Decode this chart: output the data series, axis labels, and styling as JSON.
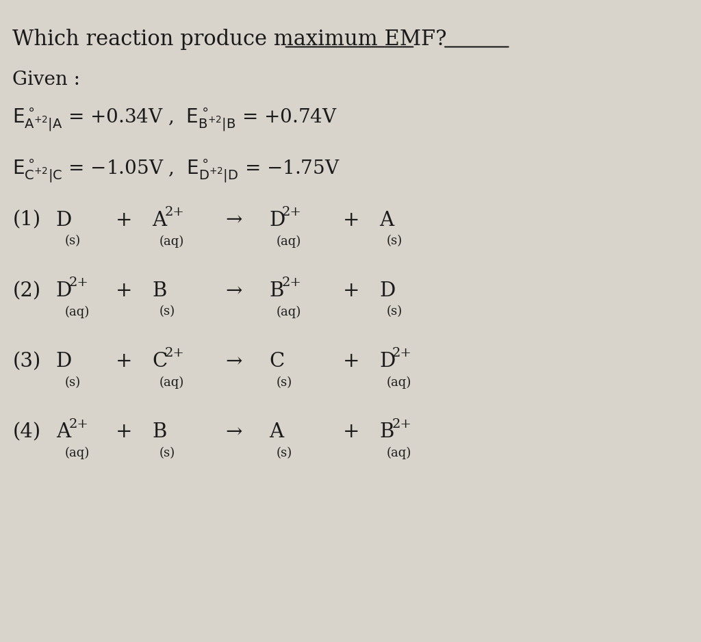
{
  "background_color": "#d8d4cc",
  "title_line1": "Which reaction produce maximum EMF?",
  "title_underline_words": [
    "maximum",
    "EMF"
  ],
  "given_label": "Given :",
  "equations": [
    "E°_{A^{+2}|A} = +0.34V ,  E°_{B^{+2}|B} = +0.74V",
    "E°_{C^{+2}|C} = −1.05V ,  E°_{D^{+2}|D} = −1.75V"
  ],
  "reactions": [
    {
      "num": "(1)",
      "reactants": "D + A²⁺",
      "arrow": "→",
      "products": "D²⁺ + A",
      "sub_r1": "(s)",
      "sub_r2": "(aq)",
      "sub_p1": "(aq)",
      "sub_p2": "(s)"
    },
    {
      "num": "(2)",
      "reactants": "D²⁺ + B",
      "arrow": "→",
      "products": "B²⁺ + D",
      "sub_r1": "(aq)",
      "sub_r2": "(s)",
      "sub_p1": "(aq)",
      "sub_p2": "(s)"
    },
    {
      "num": "(3)",
      "reactants": "D + C²⁺",
      "arrow": "→",
      "products": "C + D²⁺",
      "sub_r1": "(s)",
      "sub_r2": "(aq)",
      "sub_p1": "(s)",
      "sub_p2": "(aq)"
    },
    {
      "num": "(4)",
      "reactants": "A²⁺ + B",
      "arrow": "→",
      "products": "A + B²⁺",
      "sub_r1": "(aq)",
      "sub_r2": "(s)",
      "sub_p1": "(s)",
      "sub_p2": "(aq)"
    }
  ],
  "text_color": "#1a1a1a",
  "font_size_title": 22,
  "font_size_body": 20,
  "font_size_reaction": 21,
  "font_size_sub": 13
}
